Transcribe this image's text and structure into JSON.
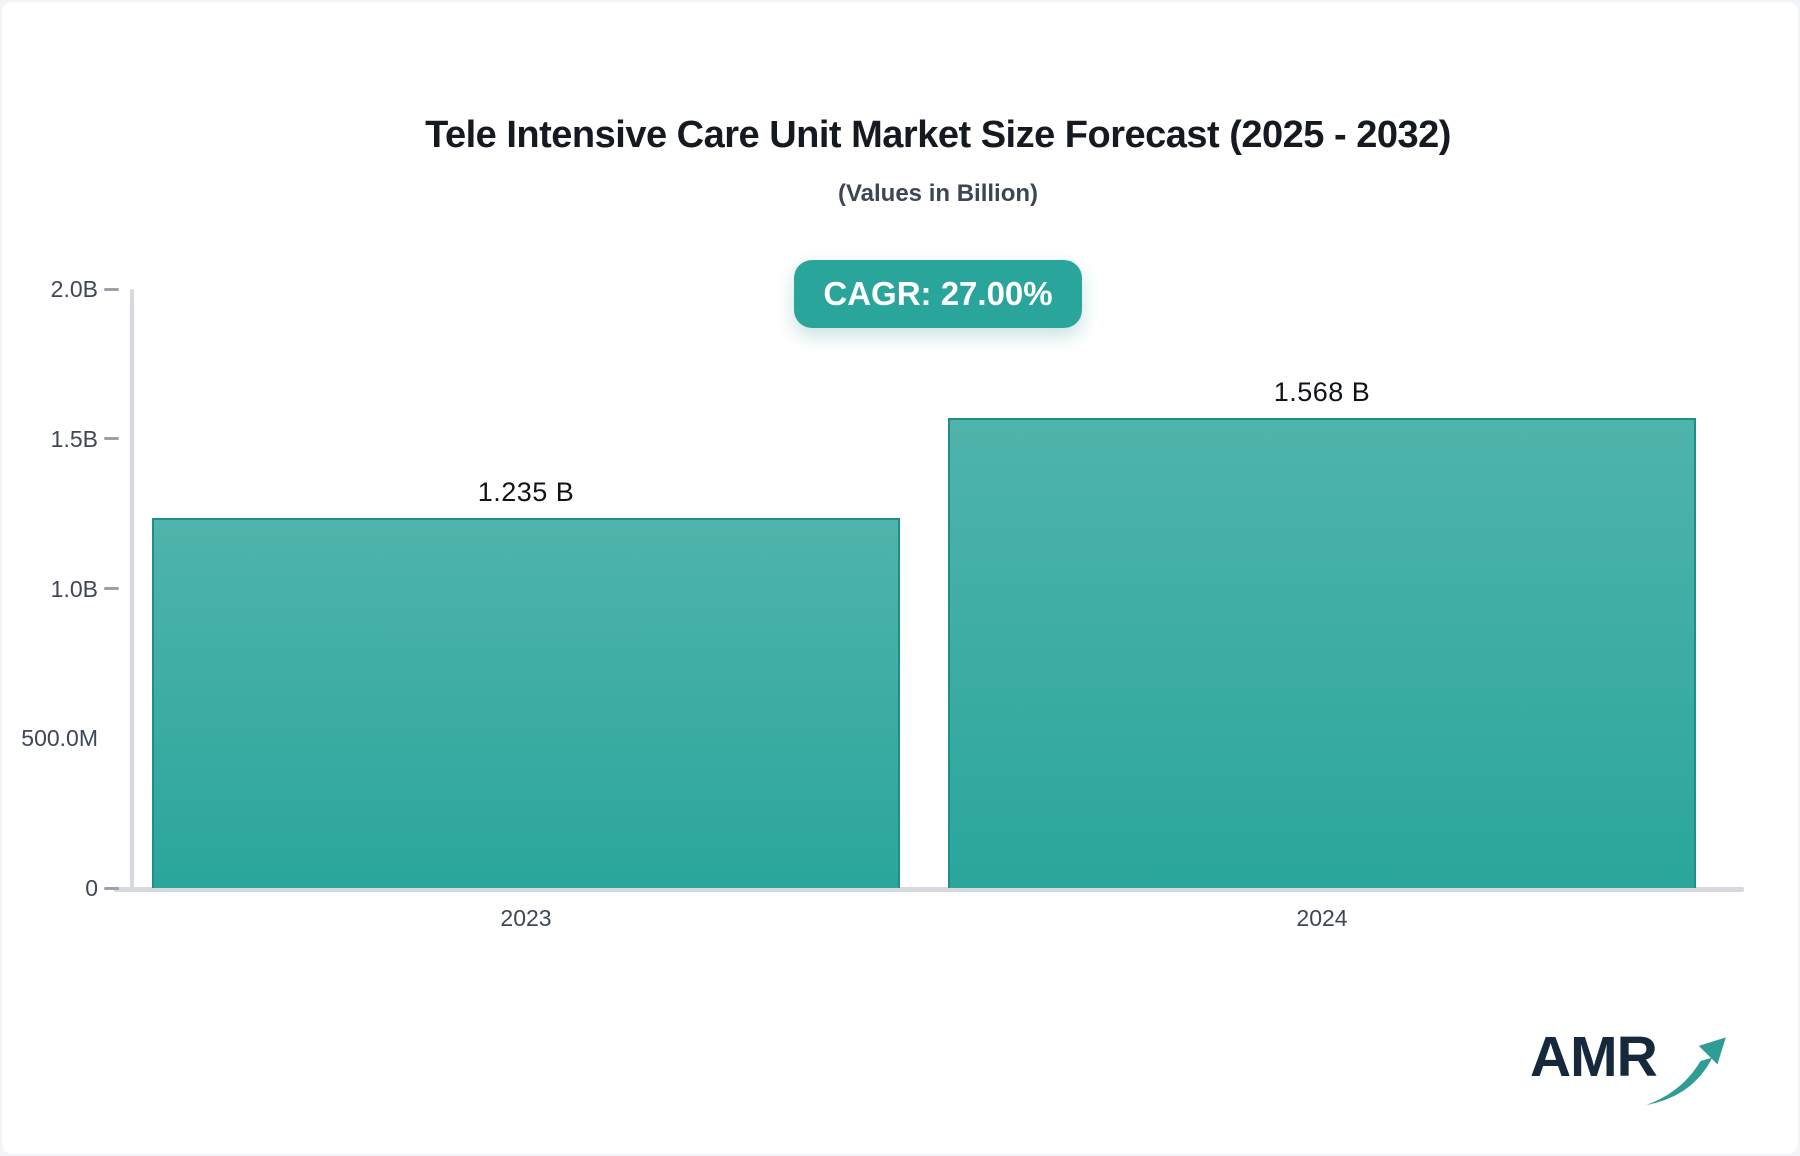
{
  "header": {
    "title": "Tele Intensive Care Unit Market Size Forecast (2025 - 2032)",
    "subtitle": "(Values in Billion)",
    "cagr_badge": "CAGR: 27.00%"
  },
  "chart_data": {
    "type": "bar",
    "title": "Tele Intensive Care Unit Market Size Forecast (2025 - 2032)",
    "subtitle": "(Values in Billion)",
    "cagr_percent": 27.0,
    "categories": [
      "2023",
      "2024"
    ],
    "values": [
      1.235,
      1.568
    ],
    "value_labels": [
      "1.235 B",
      "1.568 B"
    ],
    "unit": "Billion",
    "y_axis": {
      "range": [
        0,
        2.0
      ],
      "ticks": [
        {
          "label": "2.0B",
          "value": 2.0,
          "dash": true
        },
        {
          "label": "1.5B",
          "value": 1.5,
          "dash": true
        },
        {
          "label": "1.0B",
          "value": 1.0,
          "dash": true
        },
        {
          "label": "500.0M",
          "value": 0.5,
          "dash": false
        },
        {
          "label": "0",
          "value": 0.0,
          "dash": true
        }
      ]
    },
    "grid": false,
    "legend": false
  },
  "logo": {
    "text": "AMR",
    "arrow_icon": "trend-up-arrow"
  },
  "colors": {
    "title": "#151a21",
    "subtitle": "#3d4654",
    "badge_bg": "#2aa59b",
    "badge_text": "#ffffff",
    "bar_top": "#4fb4ab",
    "bar_bottom": "#2aa69b",
    "bar_border": "#1f8e88",
    "axis_line": "#d6d9de",
    "tick_dash": "#9aa1ab",
    "tick_label": "#3f4756",
    "x_label": "#3f4756",
    "value_label": "#101418",
    "logo_text": "#16293c",
    "logo_arrow": "#2f9c95"
  }
}
